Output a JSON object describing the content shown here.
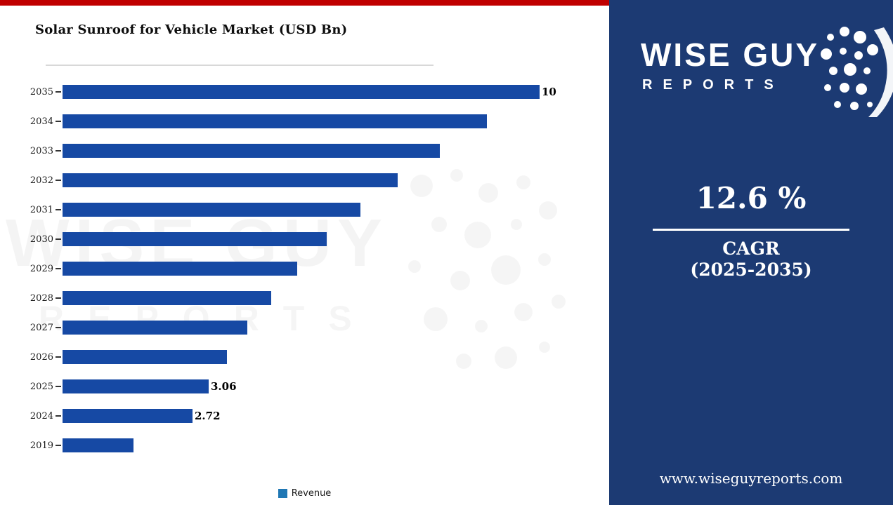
{
  "brand": {
    "logo_line1": "WISE GUY",
    "logo_line2": "REPORTS",
    "website": "www.wiseguyreports.com",
    "panel_color": "#1c3a73",
    "accent_red": "#c00000"
  },
  "stats": {
    "cagr_value": "12.6 %",
    "cagr_label_line1": "CAGR",
    "cagr_label_line2": "(2025-2035)"
  },
  "watermark": {
    "line1": "WISE GUY",
    "line2": "REPORTS"
  },
  "chart_data": {
    "type": "bar",
    "orientation": "horizontal",
    "title": "Solar Sunroof for Vehicle Market (USD Bn)",
    "xlabel": "",
    "ylabel": "",
    "grid": false,
    "legend_position": "bottom",
    "legend": [
      "Revenue"
    ],
    "categories": [
      "2035",
      "2034",
      "2033",
      "2032",
      "2031",
      "2030",
      "2029",
      "2028",
      "2027",
      "2026",
      "2025",
      "2024",
      "2019"
    ],
    "values": [
      10,
      8.9,
      7.91,
      7.02,
      6.24,
      5.54,
      4.92,
      4.37,
      3.88,
      3.45,
      3.06,
      2.72,
      1.49
    ],
    "data_labels": {
      "2035": "10",
      "2025": "3.06",
      "2024": "2.72"
    },
    "xlim": [
      0,
      10.6
    ],
    "bar_color": "#1649a4",
    "legend_marker_color": "#1f77b4"
  }
}
